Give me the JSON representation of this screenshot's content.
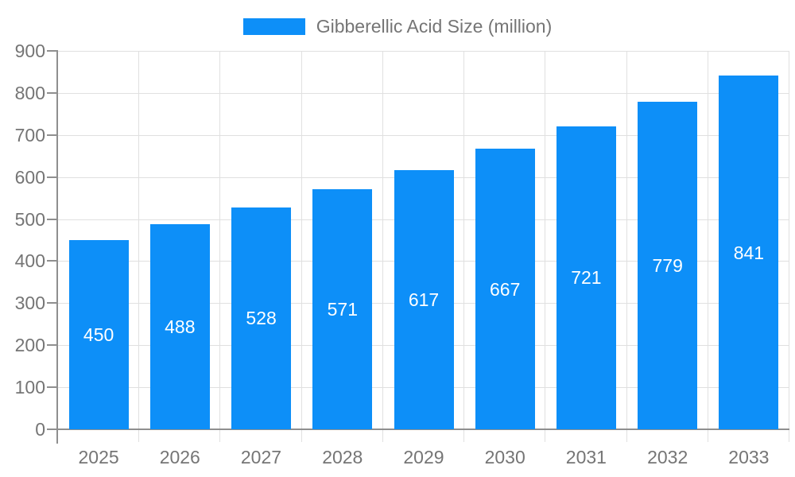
{
  "chart_data": {
    "type": "bar",
    "title": "",
    "categories": [
      "2025",
      "2026",
      "2027",
      "2028",
      "2029",
      "2030",
      "2031",
      "2032",
      "2033"
    ],
    "series": [
      {
        "name": "Gibberellic Acid Size (million)",
        "values": [
          450,
          488,
          528,
          571,
          617,
          667,
          721,
          779,
          841
        ],
        "color": "#0d8ff8"
      }
    ],
    "bar_value_labels": [
      450,
      488,
      528,
      571,
      617,
      667,
      721,
      779,
      841
    ],
    "xlabel": "",
    "ylabel": "",
    "ylim": [
      0,
      900
    ],
    "ytick_step": 100,
    "ytick_labels": [
      "0",
      "100",
      "200",
      "300",
      "400",
      "500",
      "600",
      "700",
      "800",
      "900"
    ],
    "grid": true,
    "legend_position": "top",
    "colors": {
      "bar": "#0d8ff8",
      "bar_label_text": "#ffffff",
      "axis_text": "#757575",
      "axis_line": "#8f8f8f",
      "gridline": "#e0e0e0",
      "background": "#ffffff"
    }
  }
}
